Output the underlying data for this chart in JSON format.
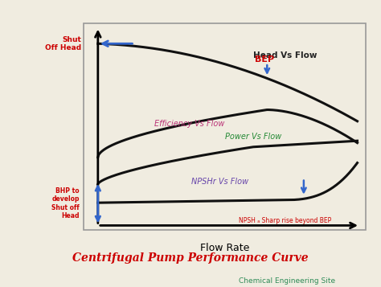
{
  "title": "Centrifugal Pump Performance Curve",
  "subtitle": "Chemical Engineering Site",
  "xlabel": "Flow Rate",
  "bg_color": "#f0ece0",
  "plot_bg": "#f8f5ee",
  "title_color": "#cc0000",
  "subtitle_color": "#2e8b57",
  "curve_color": "#111111",
  "arrow_color": "#3366cc",
  "label_colors": {
    "head": "#222222",
    "efficiency": "#bb3377",
    "power": "#228833",
    "npshr": "#6644aa",
    "bep": "#cc0000",
    "npsha": "#cc0000",
    "shut_off_head": "#cc0000",
    "bhp": "#cc0000"
  },
  "annotations": {
    "head_label": "Head Vs Flow",
    "efficiency_label": "Efficiency Vs Flow",
    "power_label": "Power Vs Flow",
    "npshr_label": "NPSHr Vs Flow",
    "bep_label": "BEP",
    "npsha_label": "NPSH ₐ Sharp rise beyond BEP",
    "shut_off_head": "Shut\nOff Head",
    "bhp_label": "BHP to\ndevelop\nShut off\nHead"
  }
}
